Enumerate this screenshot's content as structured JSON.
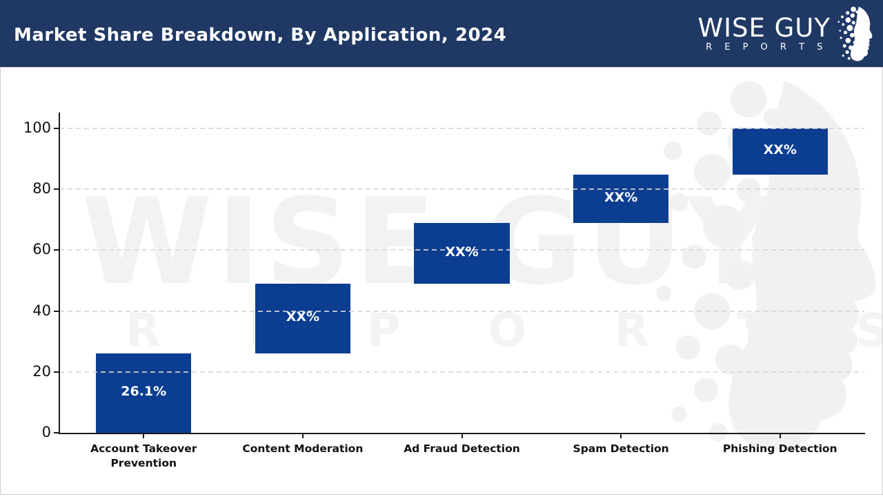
{
  "header": {
    "title": "Market Share Breakdown, By Application, 2024",
    "bg_color": "#1f3864",
    "logo": {
      "line1": "WISE GUY",
      "line2": "R E P O R T S",
      "icon": "face-dots-icon"
    }
  },
  "watermark": {
    "line1": "WISE GUY",
    "line2": "R E P O R T S"
  },
  "chart_data": {
    "type": "bar",
    "subtype": "waterfall",
    "title": "Market Share Breakdown, By Application, 2024",
    "xlabel": "",
    "ylabel": "",
    "categories": [
      "Account Takeover Prevention",
      "Content Moderation",
      "Ad Fraud Detection",
      "Spam Detection",
      "Phishing Detection"
    ],
    "segments": [
      {
        "category": "Account Takeover Prevention",
        "start": 0,
        "end": 26.1,
        "label": "26.1%"
      },
      {
        "category": "Content Moderation",
        "start": 26.1,
        "end": 49.0,
        "label": "XX%"
      },
      {
        "category": "Ad Fraud Detection",
        "start": 49.0,
        "end": 69.0,
        "label": "XX%"
      },
      {
        "category": "Spam Detection",
        "start": 69.0,
        "end": 84.9,
        "label": "XX%"
      },
      {
        "category": "Phishing Detection",
        "start": 84.9,
        "end": 100,
        "label": "XX%"
      }
    ],
    "yticks": [
      0,
      20,
      40,
      60,
      80,
      100
    ],
    "ylim": [
      0,
      105.2
    ],
    "grid": "horizontal-dashed",
    "legend": "none",
    "bar_color": "#0b3d91",
    "bar_label_color": "#ffffff",
    "grid_color": "#dddddd",
    "axis_color": "#1a1a1a"
  }
}
